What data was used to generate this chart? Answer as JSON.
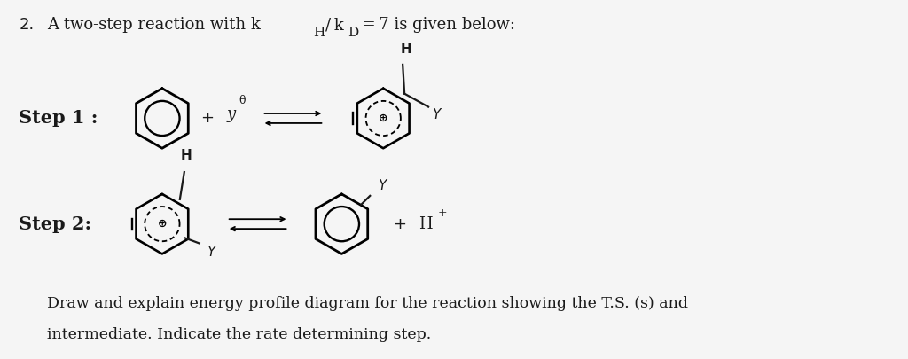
{
  "title_number": "2.",
  "title_main": "A two-step reaction with k",
  "title_sub_H": "H",
  "title_slash": " / k",
  "title_sub_D": "D",
  "title_eq": " = 7 is given below:",
  "step1_label": "Step 1 :",
  "step2_label": "Step 2:",
  "plus": "+",
  "y_theta_main": "y",
  "y_theta_sup": "θ",
  "equilibrium_top": "→",
  "equilibrium_bot": "←",
  "h_label": "H",
  "y_label": "Y",
  "hplus_label": "H",
  "hplus_sup": "+",
  "footer_line1": "Draw and explain energy profile diagram for the reaction showing the T.S. (s) and",
  "footer_line2": "intermediate. Indicate the rate determining step.",
  "bg_color": "#f5f5f5",
  "text_color": "#1a1a1a",
  "font_size_title": 13,
  "font_size_step_bold": 15,
  "font_size_body": 12.5,
  "s1y": 2.72,
  "s2y": 1.52
}
